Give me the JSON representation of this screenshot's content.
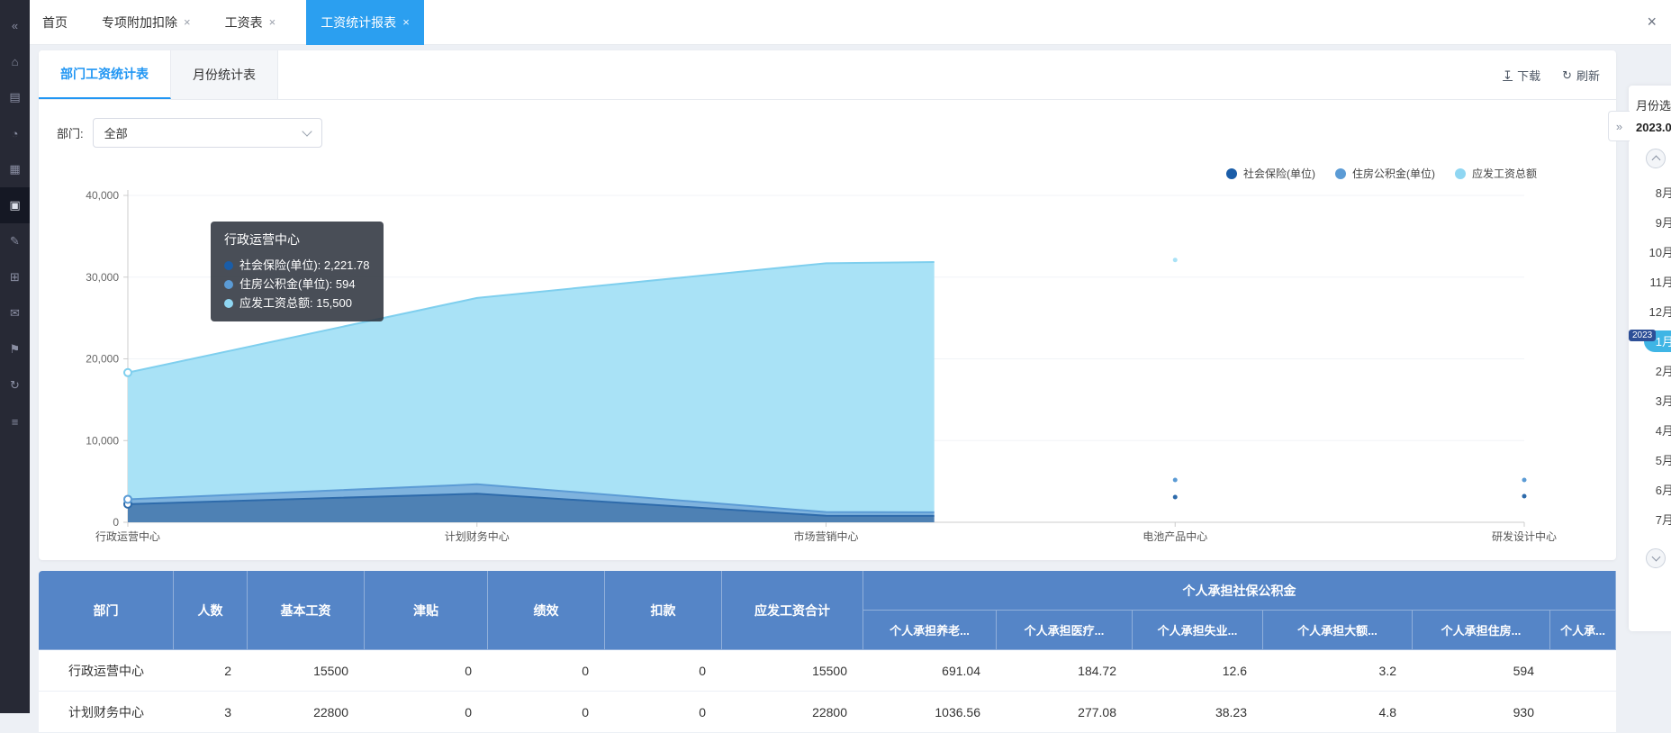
{
  "sidebar": {
    "icons": [
      {
        "name": "back-arrow",
        "glyph": "«",
        "active": false
      },
      {
        "name": "home",
        "glyph": "⌂",
        "active": false
      },
      {
        "name": "list",
        "glyph": "▤",
        "active": false
      },
      {
        "name": "clock",
        "glyph": "◔",
        "active": false
      },
      {
        "name": "grid",
        "glyph": "▦",
        "active": false
      },
      {
        "name": "report",
        "glyph": "▣",
        "active": true
      },
      {
        "name": "edit",
        "glyph": "✎",
        "active": false
      },
      {
        "name": "add",
        "glyph": "⊞",
        "active": false
      },
      {
        "name": "mail",
        "glyph": "✉",
        "active": false
      },
      {
        "name": "flag",
        "glyph": "⚑",
        "active": false
      },
      {
        "name": "refresh",
        "glyph": "↻",
        "active": false
      },
      {
        "name": "menu",
        "glyph": "≡",
        "active": false
      }
    ]
  },
  "tabbar": {
    "close_glyph": "×",
    "tabs": [
      {
        "label": "首页",
        "closable": false,
        "active": false
      },
      {
        "label": "专项附加扣除",
        "closable": true,
        "active": false
      },
      {
        "label": "工资表",
        "closable": true,
        "active": false
      },
      {
        "label": "工资统计报表",
        "closable": true,
        "active": true
      }
    ]
  },
  "panel": {
    "subtabs": [
      {
        "label": "部门工资统计表",
        "active": true
      },
      {
        "label": "月份统计表",
        "active": false
      }
    ],
    "tools": {
      "download": "下载",
      "download_glyph": "↧",
      "refresh": "刷新",
      "refresh_glyph": "↻"
    },
    "filter": {
      "label": "部门:",
      "value": "全部"
    }
  },
  "chart_data": {
    "type": "area",
    "stacked": true,
    "categories": [
      "行政运营中心",
      "计划财务中心",
      "市场营销中心",
      "电池产品中心",
      "研发设计中心"
    ],
    "series": [
      {
        "name": "社会保险(单位)",
        "dot": "#1a5da8",
        "fill": "#4e81b4",
        "stroke": "#2e6bab",
        "values": [
          2221.78,
          3500,
          800,
          null,
          null
        ]
      },
      {
        "name": "住房公积金(单位)",
        "dot": "#5b9bd5",
        "fill": "#7fb3de",
        "stroke": "#5b9bd5",
        "values": [
          594,
          1150,
          450,
          null,
          null
        ]
      },
      {
        "name": "应发工资总额",
        "dot": "#8fd6f2",
        "fill": "#a9e2f6",
        "stroke": "#7fcfee",
        "values": [
          15500,
          22800,
          30450,
          null,
          null
        ]
      }
    ],
    "cutoff": {
      "fraction": 0.31,
      "values": [
        780,
        440,
        30630
      ]
    },
    "scatter": [
      {
        "category": 3,
        "value": 32100,
        "color": "#a9e2f6"
      },
      {
        "category": 3,
        "value": 5180,
        "color": "#5b9bd5"
      },
      {
        "category": 3,
        "value": 3086,
        "color": "#2e6bab"
      },
      {
        "category": 4,
        "value": 5180,
        "color": "#5b9bd5"
      },
      {
        "category": 4,
        "value": 3196,
        "color": "#2e6bab"
      }
    ],
    "ylim": [
      0,
      40000
    ],
    "yticks": [
      0,
      10000,
      20000,
      30000,
      40000
    ],
    "ytick_labels": [
      "0",
      "10,000",
      "20,000",
      "30,000",
      "40,000"
    ],
    "xlabel": "",
    "ylabel": "",
    "grid": true,
    "legend_position": "top-right",
    "hover_category": 0
  },
  "tooltip": {
    "title": "行政运营中心",
    "rows": [
      {
        "label": "社会保险(单位)",
        "value": "2,221.78",
        "color": "#1a5da8"
      },
      {
        "label": "住房公积金(单位)",
        "value": "594",
        "color": "#5b9bd5"
      },
      {
        "label": "应发工资总额",
        "value": "15,500",
        "color": "#8fd6f2"
      }
    ]
  },
  "month_panel": {
    "collapse_glyph": "»",
    "title": "月份选",
    "subtitle": "2023.0",
    "selected": "1月",
    "selected_year": "2023",
    "months": [
      "8月",
      "9月",
      "10月",
      "11月",
      "12月",
      "1月",
      "2月",
      "3月",
      "4月",
      "5月",
      "6月",
      "7月"
    ]
  },
  "table": {
    "group_header": "个人承担社保公积金",
    "columns": [
      {
        "label": "部门"
      },
      {
        "label": "人数"
      },
      {
        "label": "基本工资"
      },
      {
        "label": "津贴"
      },
      {
        "label": "绩效"
      },
      {
        "label": "扣款"
      },
      {
        "label": "应发工资合计"
      }
    ],
    "sub_columns": [
      "个人承担养老...",
      "个人承担医疗...",
      "个人承担失业...",
      "个人承担大额...",
      "个人承担住房...",
      "个人承..."
    ],
    "rows": [
      [
        "行政运营中心",
        "2",
        "15500",
        "0",
        "0",
        "0",
        "15500",
        "691.04",
        "184.72",
        "12.6",
        "3.2",
        "594",
        ""
      ],
      [
        "计划财务中心",
        "3",
        "22800",
        "0",
        "0",
        "0",
        "22800",
        "1036.56",
        "277.08",
        "38.23",
        "4.8",
        "930",
        ""
      ]
    ]
  }
}
